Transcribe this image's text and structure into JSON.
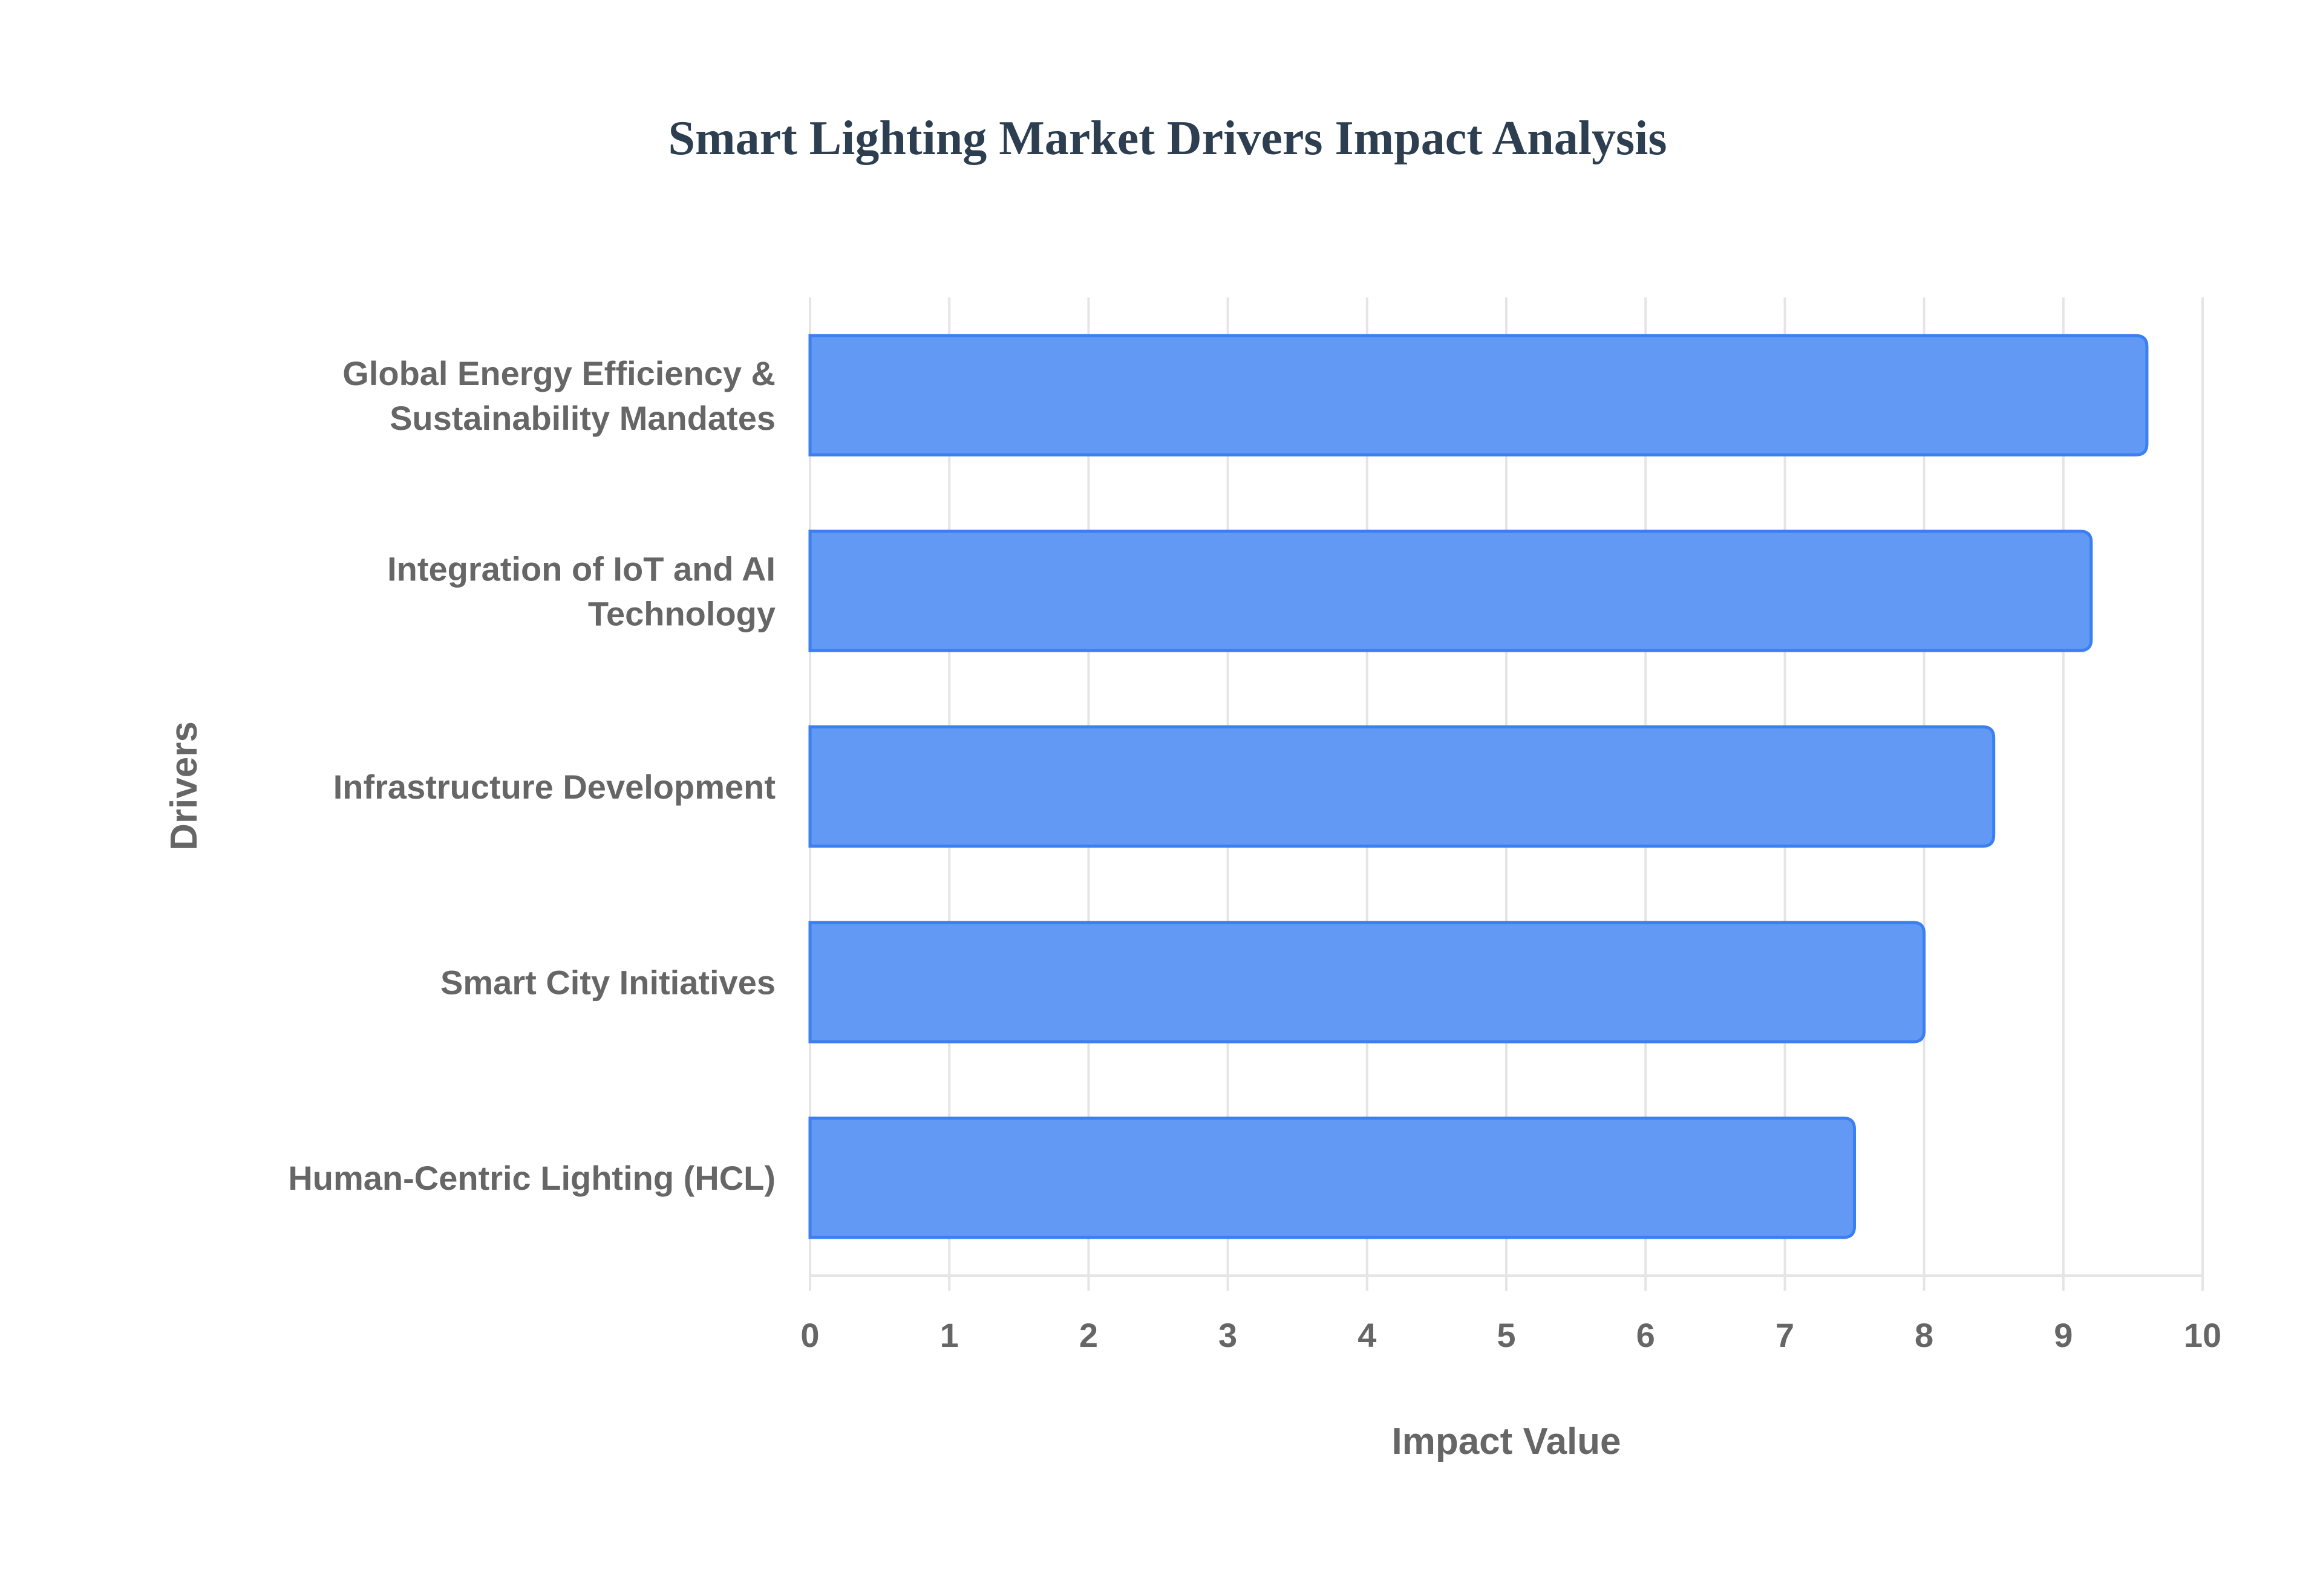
{
  "chart_data": {
    "type": "bar",
    "orientation": "horizontal",
    "title": "Smart Lighting Market Drivers Impact Analysis",
    "xlabel": "Impact Value",
    "ylabel": "Drivers",
    "xlim": [
      0,
      10
    ],
    "xticks": [
      "0",
      "1",
      "2",
      "3",
      "4",
      "5",
      "6",
      "7",
      "8",
      "9",
      "10"
    ],
    "grid": true,
    "categories": [
      [
        "Global Energy Efficiency &",
        "Sustainability Mandates"
      ],
      [
        "Integration of IoT and AI",
        "Technology"
      ],
      [
        "Infrastructure Development"
      ],
      [
        "Smart City Initiatives"
      ],
      [
        "Human-Centric Lighting (HCL)"
      ]
    ],
    "values": [
      9.6,
      9.2,
      8.5,
      8.0,
      7.5
    ],
    "colors": {
      "bar_fill": "#6199f5",
      "bar_border": "#3b7ff0",
      "grid": "#e5e5e5",
      "text": "#666666",
      "title": "#2c3e50"
    }
  }
}
